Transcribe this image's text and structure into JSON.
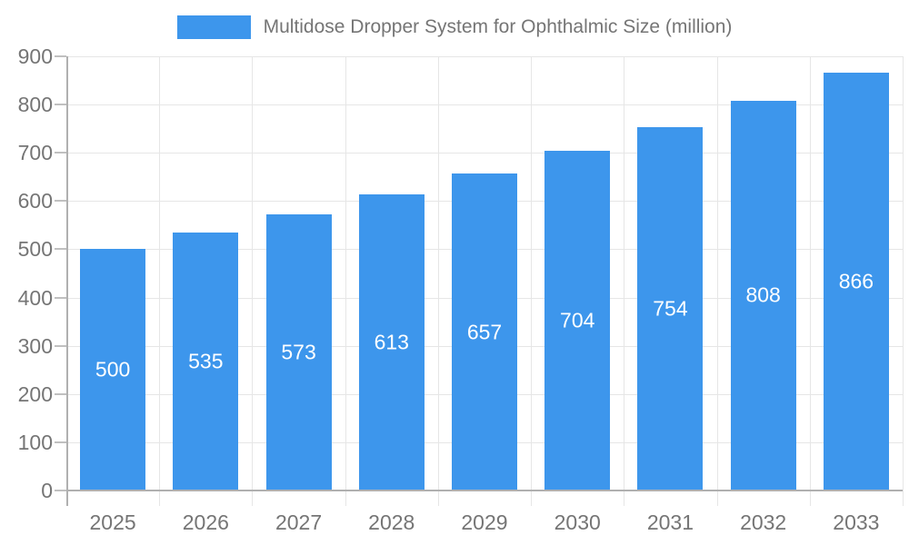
{
  "chart_data": {
    "type": "bar",
    "title": "Multidose Dropper System for Ophthalmic Size (million)",
    "categories": [
      "2025",
      "2026",
      "2027",
      "2028",
      "2029",
      "2030",
      "2031",
      "2032",
      "2033"
    ],
    "values": [
      500,
      535,
      573,
      613,
      657,
      704,
      754,
      808,
      866
    ],
    "xlabel": "",
    "ylabel": "",
    "ylim": [
      0,
      900
    ],
    "ytick_step": 100,
    "grid": true,
    "legend_position": "top-center",
    "colors": {
      "bar": "#3d96ec",
      "bar_label": "#ffffff",
      "axis": "#b0b0b0",
      "tick": "#c0c0c0",
      "grid": "#e6e6e6",
      "tick_label": "#757575",
      "legend_text": "#757575",
      "background": "#ffffff"
    }
  }
}
